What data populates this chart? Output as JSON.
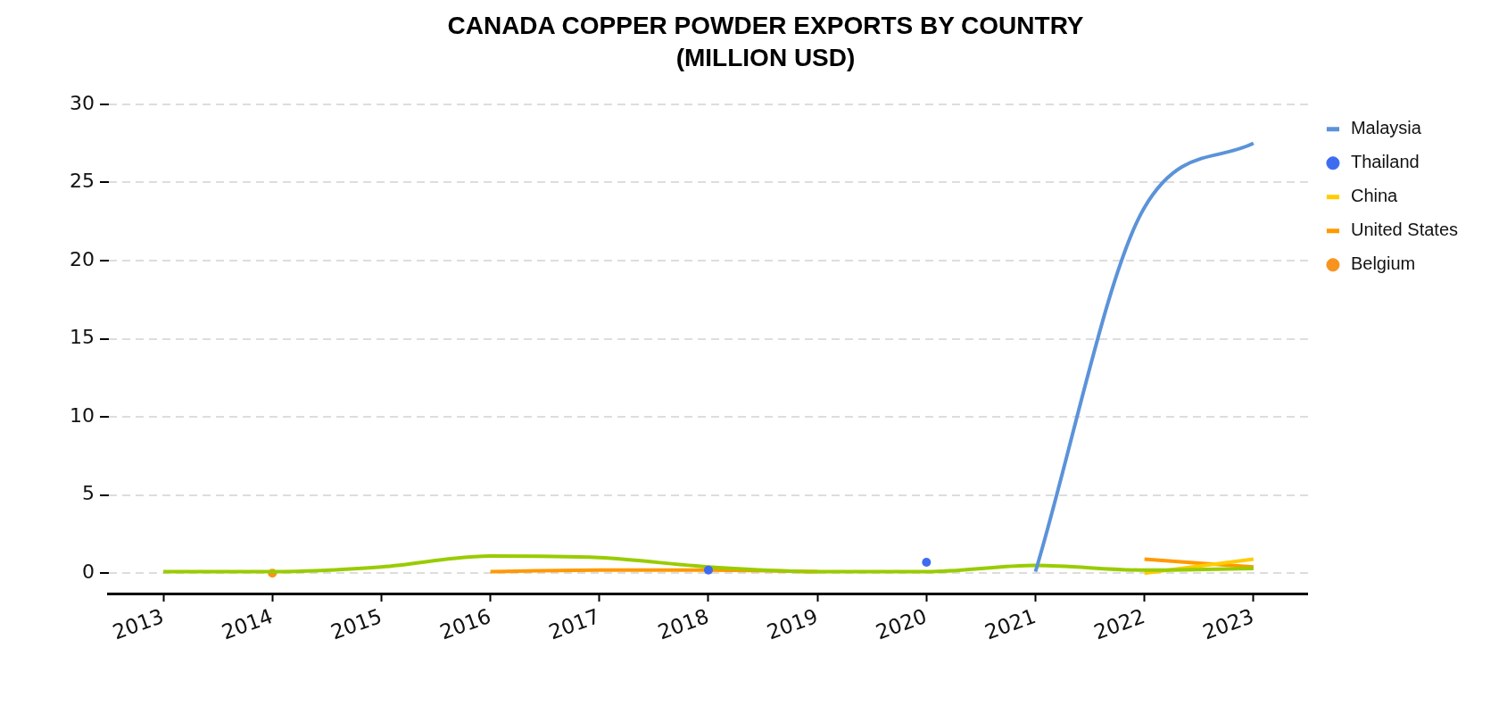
{
  "chart_data": {
    "type": "line",
    "title": "CANADA COPPER POWDER EXPORTS BY COUNTRY\n(MILLION USD)",
    "categories": [
      "2013",
      "2014",
      "2015",
      "2016",
      "2017",
      "2018",
      "2019",
      "2020",
      "2021",
      "2022",
      "2023"
    ],
    "ylim": [
      -1.3,
      30
    ],
    "yticks": [
      0,
      5,
      10,
      15,
      20,
      25,
      30
    ],
    "grid": "y",
    "legend": "top right",
    "series": [
      {
        "name": "Malaysia",
        "color": "#5b93d9",
        "values": [
          null,
          null,
          null,
          null,
          null,
          null,
          null,
          null,
          0.1,
          23.4,
          27.5
        ]
      },
      {
        "name": "Thailand",
        "type": "scatter",
        "color": "#3d6cf0",
        "marker": "circle",
        "values": [
          null,
          null,
          null,
          null,
          null,
          0.2,
          null,
          0.7,
          null,
          null,
          null
        ]
      },
      {
        "color": "#99cc00",
        "values": [
          0.1,
          0.1,
          0.4,
          1.1,
          1.0,
          0.4,
          0.1,
          0.1,
          0.5,
          0.2,
          0.3
        ]
      },
      {
        "name": "China",
        "color": "#ffcc00",
        "values": [
          null,
          null,
          null,
          null,
          null,
          null,
          null,
          null,
          null,
          0.0,
          0.9
        ]
      },
      {
        "name": "United States",
        "color": "#ff9900",
        "values": [
          null,
          null,
          null,
          0.1,
          0.2,
          0.2,
          0.1,
          null,
          null,
          0.9,
          0.4
        ]
      },
      {
        "name": "Belgium",
        "type": "scatter",
        "color": "#f7931e",
        "marker": "circle",
        "values": [
          null,
          0.0,
          null,
          null,
          null,
          null,
          null,
          null,
          null,
          null,
          null
        ]
      }
    ]
  }
}
